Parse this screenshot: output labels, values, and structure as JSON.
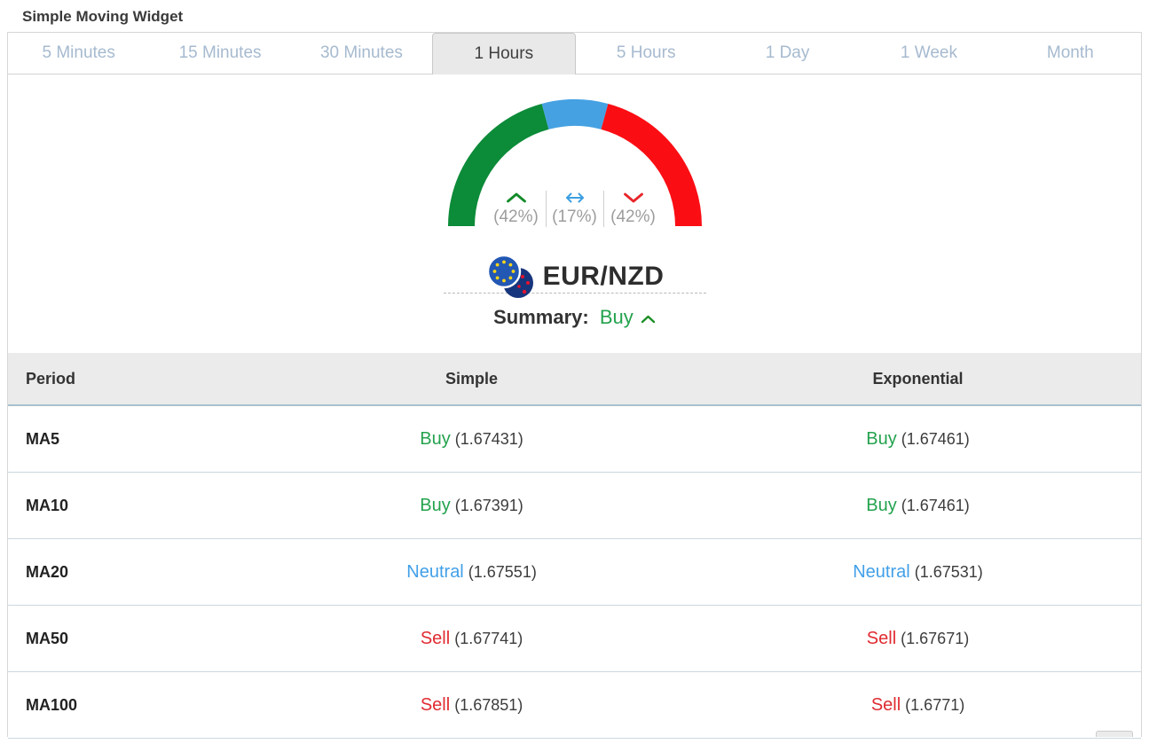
{
  "page": {
    "title": "Simple Moving Widget"
  },
  "tabs": {
    "items": [
      {
        "label": "5 Minutes",
        "active": false
      },
      {
        "label": "15 Minutes",
        "active": false
      },
      {
        "label": "30 Minutes",
        "active": false
      },
      {
        "label": "1 Hours",
        "active": true
      },
      {
        "label": "5 Hours",
        "active": false
      },
      {
        "label": "1 Day",
        "active": false
      },
      {
        "label": "1 Week",
        "active": false
      },
      {
        "label": "Month",
        "active": false
      }
    ]
  },
  "gauge": {
    "type": "gauge",
    "segments": [
      {
        "name": "buy",
        "icon": "chevron-up-icon",
        "percent": 42,
        "label": "(42%)",
        "color": "#0c8b38"
      },
      {
        "name": "neutral",
        "icon": "arrow-left-right-icon",
        "percent": 17,
        "label": "(17%)",
        "color": "#45a1e2"
      },
      {
        "name": "sell",
        "icon": "chevron-down-icon",
        "percent": 42,
        "label": "(42%)",
        "color": "#fa0e14"
      }
    ]
  },
  "pair": {
    "name": "EUR/NZD",
    "flag_icons": [
      "eu-flag-icon",
      "nz-flag-icon"
    ]
  },
  "summary": {
    "label": "Summary:",
    "value": "Buy",
    "signal": "buy",
    "direction_icon": "chevron-up-icon"
  },
  "table": {
    "headers": [
      "Period",
      "Simple",
      "Exponential"
    ],
    "rows": [
      {
        "period": "MA5",
        "simple": {
          "action": "Buy",
          "value": "(1.67431)",
          "signal": "buy"
        },
        "exponential": {
          "action": "Buy",
          "value": "(1.67461)",
          "signal": "buy"
        }
      },
      {
        "period": "MA10",
        "simple": {
          "action": "Buy",
          "value": "(1.67391)",
          "signal": "buy"
        },
        "exponential": {
          "action": "Buy",
          "value": "(1.67461)",
          "signal": "buy"
        }
      },
      {
        "period": "MA20",
        "simple": {
          "action": "Neutral",
          "value": "(1.67551)",
          "signal": "neutral"
        },
        "exponential": {
          "action": "Neutral",
          "value": "(1.67531)",
          "signal": "neutral"
        }
      },
      {
        "period": "MA50",
        "simple": {
          "action": "Sell",
          "value": "(1.67741)",
          "signal": "sell"
        },
        "exponential": {
          "action": "Sell",
          "value": "(1.67671)",
          "signal": "sell"
        }
      },
      {
        "period": "MA100",
        "simple": {
          "action": "Sell",
          "value": "(1.67851)",
          "signal": "sell"
        },
        "exponential": {
          "action": "Sell",
          "value": "(1.6771)",
          "signal": "sell"
        }
      }
    ]
  },
  "colors": {
    "buy": "#23a24d",
    "neutral": "#42a0e8",
    "sell": "#e02b31"
  }
}
